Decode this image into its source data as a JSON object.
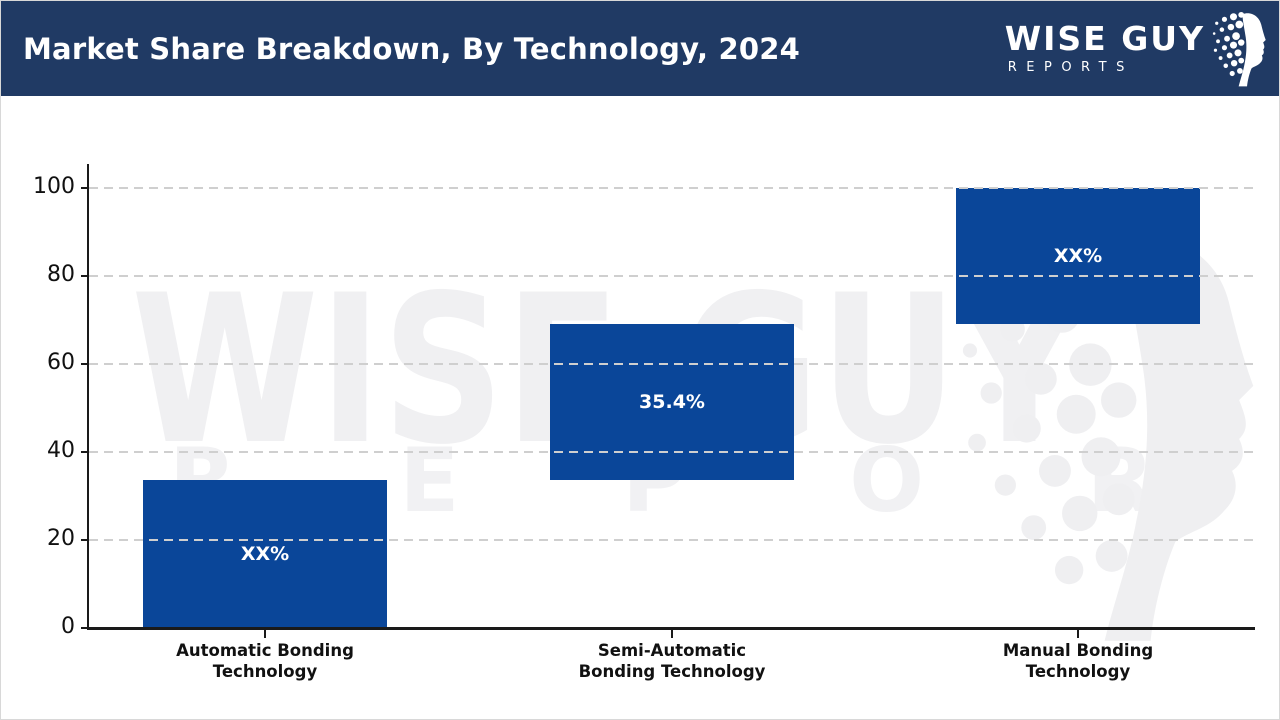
{
  "header": {
    "title": "Market Share Breakdown, By Technology, 2024",
    "logo": {
      "name": "WISE GUY",
      "tagline": "REPORTS"
    }
  },
  "watermark": {
    "name": "WISE GUY",
    "tagline": "R E P O R T S"
  },
  "chart_data": {
    "type": "bar",
    "subtype": "waterfall",
    "title": "Market Share Breakdown, By Technology, 2024",
    "categories": [
      "Automatic Bonding Technology",
      "Semi-Automatic Bonding Technology",
      "Manual Bonding Technology"
    ],
    "category_lines": [
      [
        "Automatic Bonding",
        "Technology"
      ],
      [
        "Semi-Automatic",
        "Bonding Technology"
      ],
      [
        "Manual Bonding",
        "Technology"
      ]
    ],
    "segments": [
      {
        "category": "Automatic Bonding Technology",
        "start": 0,
        "end": 33.6,
        "value": 33.6,
        "label": "XX%"
      },
      {
        "category": "Semi-Automatic Bonding Technology",
        "start": 33.6,
        "end": 69.1,
        "value": 35.4,
        "label": "35.4%"
      },
      {
        "category": "Manual Bonding Technology",
        "start": 69.1,
        "end": 100,
        "value": 31.0,
        "label": "XX%"
      }
    ],
    "displayed_labels": [
      "XX%",
      "35.4%",
      "XX%"
    ],
    "xlabel": "",
    "ylabel": "",
    "ylim": [
      0,
      105.5
    ],
    "yticks": [
      0,
      20,
      40,
      60,
      80,
      100
    ],
    "grid": "horizontal dashed, drawn above bars",
    "legend": "none",
    "bar_color": "#0a4699"
  },
  "colors": {
    "header_bg": "#203a64",
    "bar": "#0a4699",
    "grid": "#cfcfcf",
    "axis": "#1a1a1a",
    "text": "#111111",
    "watermark": "#f0f0f2"
  }
}
